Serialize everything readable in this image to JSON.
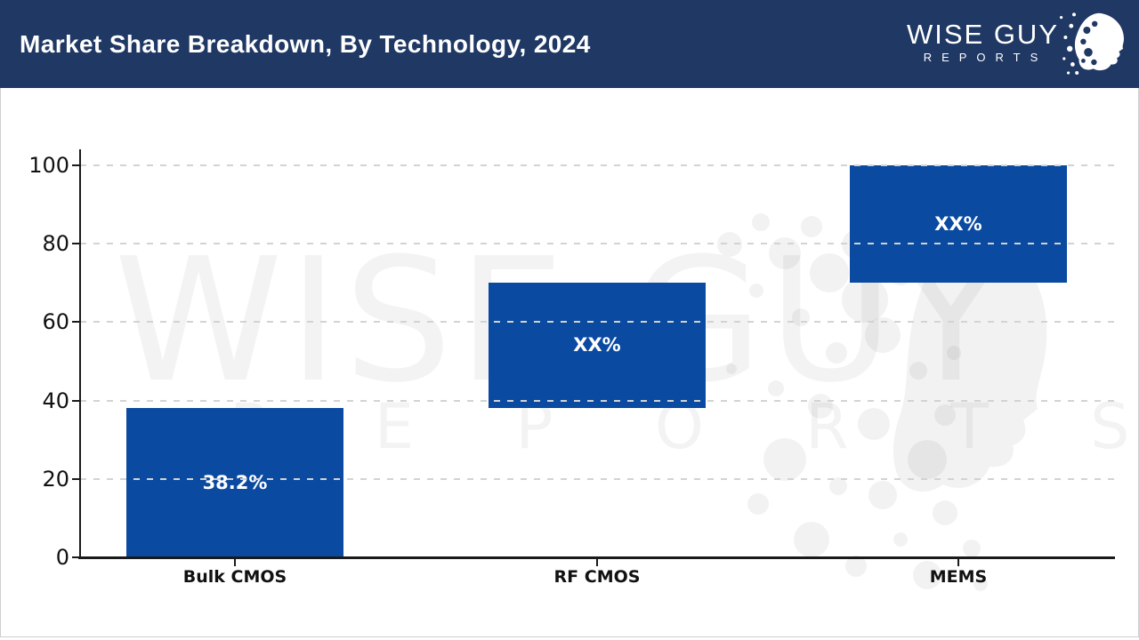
{
  "header": {
    "title": "Market Share Breakdown, By Technology, 2024",
    "logo": {
      "line1": "WISE GUY",
      "line2": "REPORTS"
    }
  },
  "watermark": {
    "line1": "WISE GUY",
    "line2": "R E P O R T S"
  },
  "colors": {
    "header_bg": "#1F3864",
    "bar": "#0B4AA1",
    "bar_label": "#ffffff",
    "gridline": "#d3d3d3",
    "axis": "#1a1a1a",
    "tick_text": "#111111"
  },
  "chart_data": {
    "type": "bar",
    "subtype": "waterfall",
    "title": "Market Share Breakdown, By Technology, 2024",
    "categories": [
      "Bulk CMOS",
      "RF CMOS",
      "MEMS"
    ],
    "series": [
      {
        "name": "Market Share",
        "segments": [
          {
            "category": "Bulk CMOS",
            "start": 0,
            "end": 38.2,
            "label": "38.2%"
          },
          {
            "category": "RF CMOS",
            "start": 38.2,
            "end": 70,
            "label": "XX%"
          },
          {
            "category": "MEMS",
            "start": 70,
            "end": 100,
            "label": "XX%"
          }
        ]
      }
    ],
    "xlabel": "",
    "ylabel": "",
    "ylim": [
      0,
      100
    ],
    "yticks": [
      0,
      20,
      40,
      60,
      80,
      100
    ],
    "grid": "horizontal-dashed",
    "legend": "none"
  }
}
